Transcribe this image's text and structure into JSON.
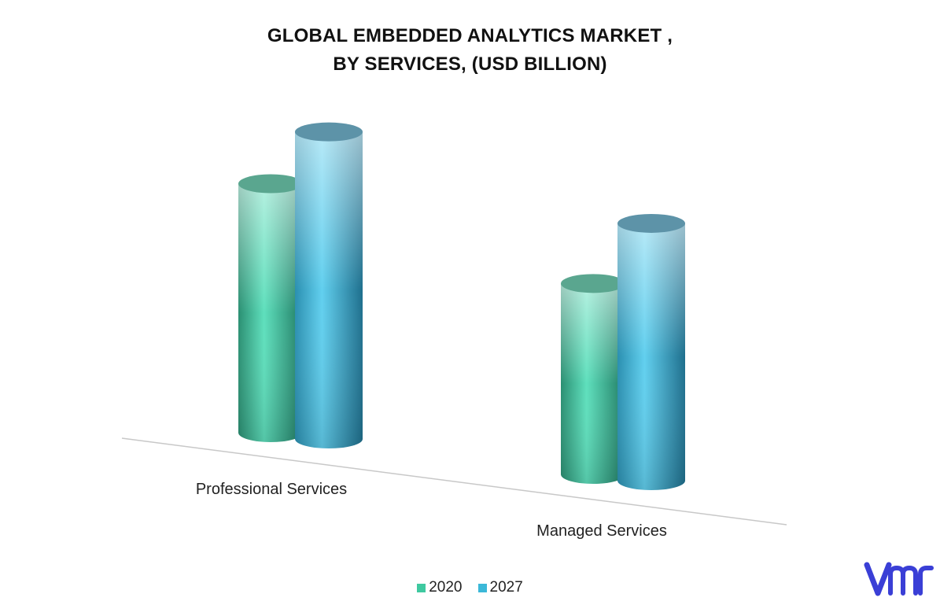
{
  "chart_data": {
    "type": "bar",
    "title_lines": [
      "GLOBAL EMBEDDED ANALYTICS MARKET ,",
      "BY SERVICES, (USD BILLION)"
    ],
    "categories": [
      "Professional Services",
      "Managed Services"
    ],
    "series": [
      {
        "name": "2020",
        "values": [
          30,
          23
        ],
        "color": "#3fc9a0"
      },
      {
        "name": "2027",
        "values": [
          37,
          31
        ],
        "color": "#3bb8d8"
      }
    ],
    "style": "3d-cylinder",
    "grid": false,
    "legend_position": "bottom"
  },
  "logo": {
    "icon": "vmr-logo-icon",
    "color": "#3a3fd6"
  }
}
